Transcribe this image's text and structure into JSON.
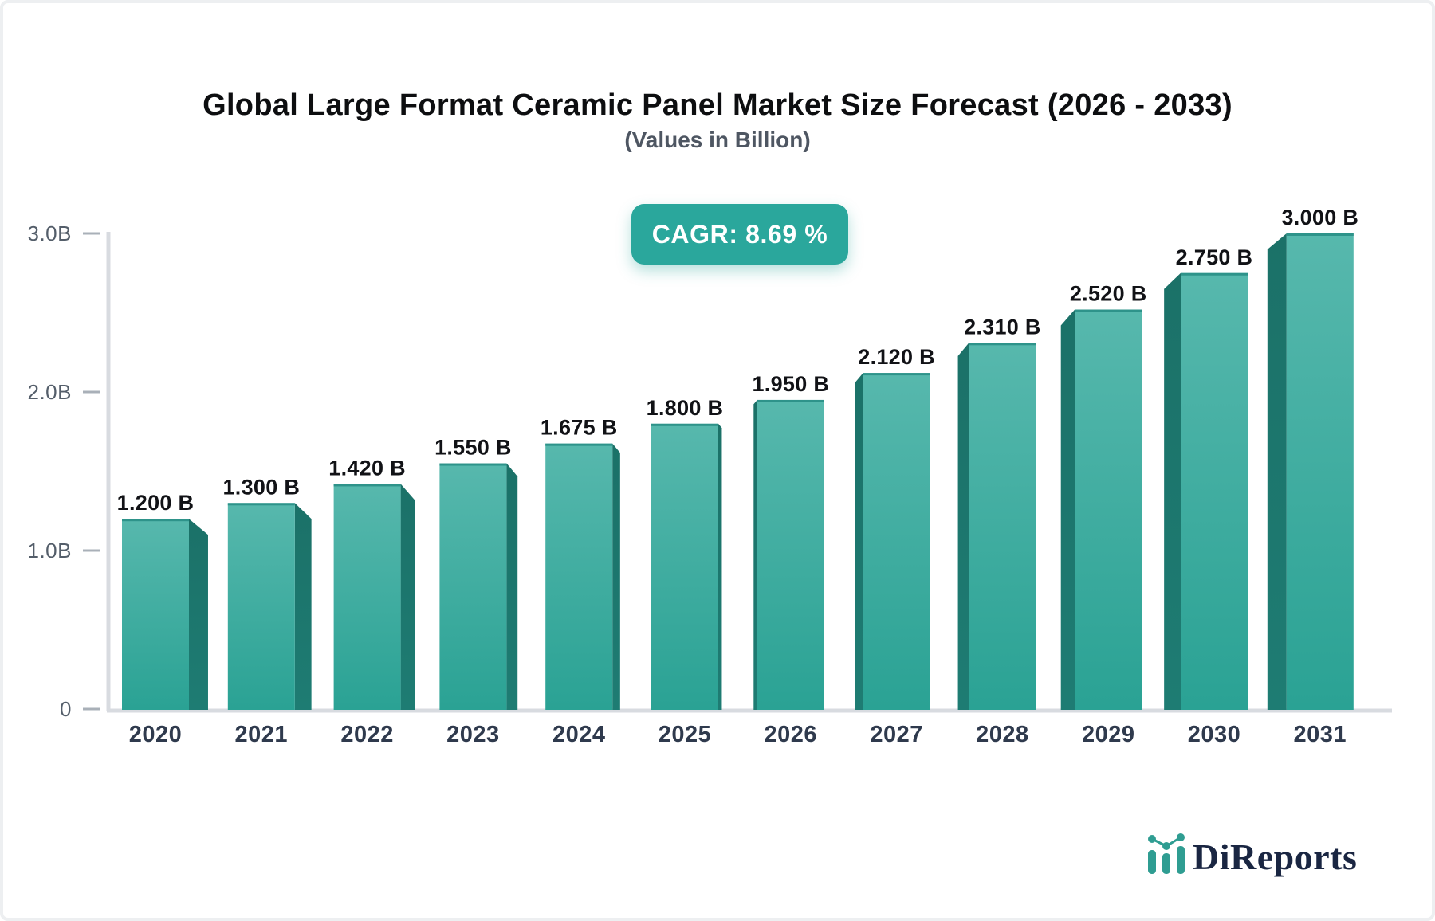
{
  "chart_data": {
    "type": "bar",
    "title": "Global Large Format Ceramic Panel Market Size Forecast (2026 - 2033)",
    "subtitle": "(Values in Billion)",
    "unit": "Billion",
    "categories": [
      "2020",
      "2021",
      "2022",
      "2023",
      "2024",
      "2025",
      "2026",
      "2027",
      "2028",
      "2029",
      "2030",
      "2031"
    ],
    "values": [
      1.2,
      1.3,
      1.42,
      1.55,
      1.675,
      1.8,
      1.95,
      2.12,
      2.31,
      2.52,
      2.75,
      3.0
    ],
    "bar_labels": [
      "1.200 B",
      "1.300 B",
      "1.420 B",
      "1.550 B",
      "1.675 B",
      "1.800 B",
      "1.950 B",
      "2.120 B",
      "2.310 B",
      "2.520 B",
      "2.750 B",
      "3.000 B"
    ],
    "xlabel": "",
    "ylabel": "",
    "ylim": [
      0,
      3.0
    ],
    "yticks": [
      {
        "value": 0,
        "label": "0"
      },
      {
        "value": 1.0,
        "label": "1.0B"
      },
      {
        "value": 2.0,
        "label": "2.0B"
      },
      {
        "value": 3.0,
        "label": "3.0B"
      }
    ],
    "grid": false,
    "legend": null,
    "bar_style": "3d-perspective",
    "annotations": {
      "cagr_label": "CAGR: 8.69 %"
    },
    "colors": {
      "bar_face_top": "#57b8ad",
      "bar_face_bottom": "#2aa294",
      "bar_side": "#1e7c73",
      "bar_side_dark": "#1b7168",
      "bar_cap": "#2e938a",
      "axis_line": "#d8dbe0",
      "tick": "#a9b0b8",
      "ytick_label": "#545e6a",
      "xtick_label": "#2f3a4d",
      "value_label": "#111216",
      "badge_bg": "#2aa79c",
      "badge_text": "#ffffff",
      "title": "#0d0e10",
      "subtitle": "#4e5662",
      "logo_teal": "#2f9d92",
      "logo_navy": "#1a2642"
    }
  },
  "footer": {
    "logo_text": "DiReports"
  }
}
